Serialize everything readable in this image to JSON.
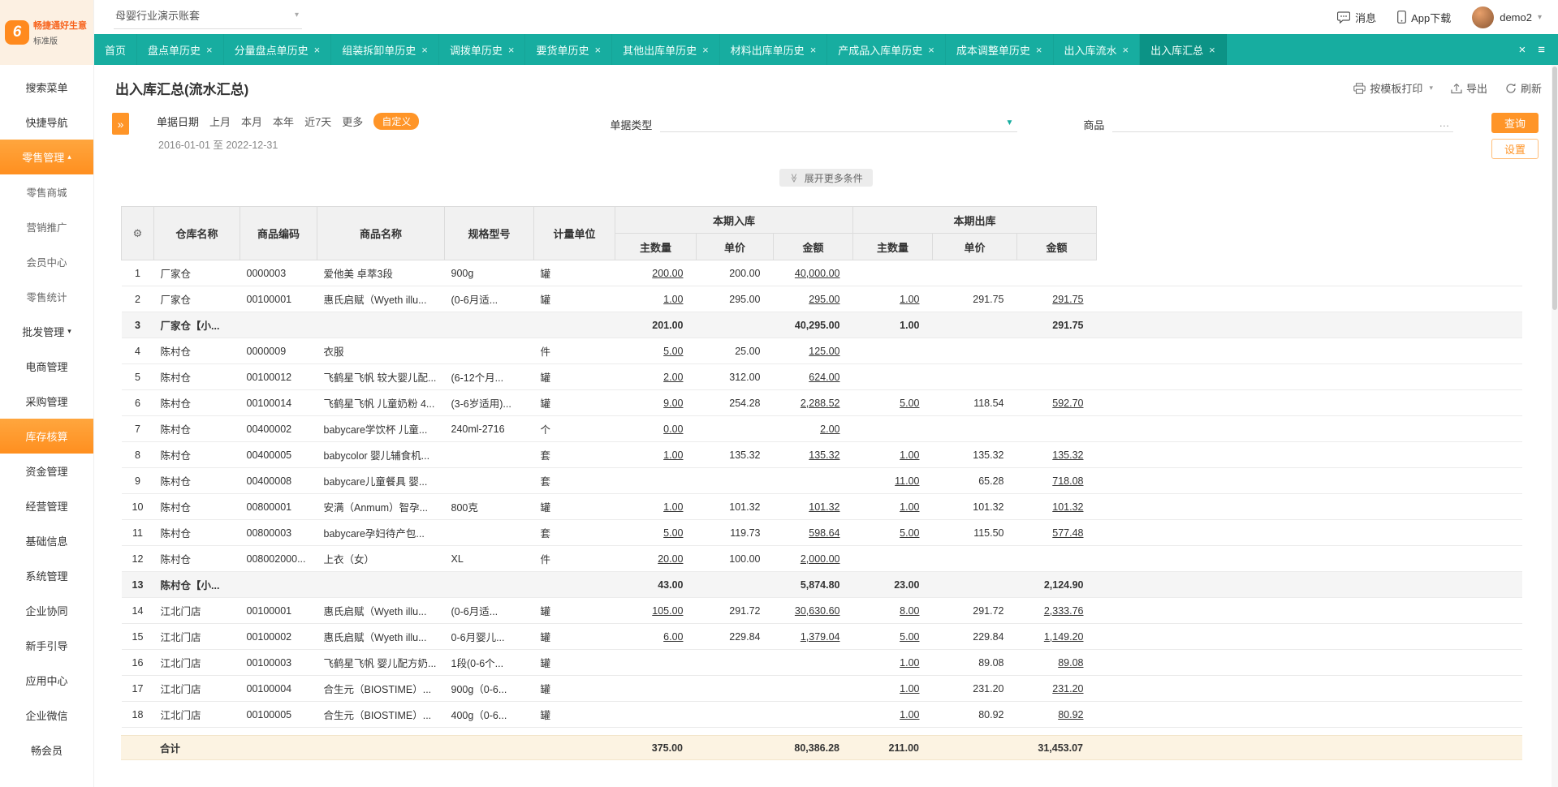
{
  "topbar": {
    "logo_title": "畅捷通好生意",
    "logo_badge": "标准版",
    "account_name": "母婴行业演示账套",
    "messages_label": "消息",
    "app_download_label": "App下载",
    "username": "demo2"
  },
  "tabs": [
    {
      "label": "首页",
      "closable": false,
      "active": false
    },
    {
      "label": "盘点单历史",
      "closable": true,
      "active": false
    },
    {
      "label": "分量盘点单历史",
      "closable": true,
      "active": false
    },
    {
      "label": "组装拆卸单历史",
      "closable": true,
      "active": false
    },
    {
      "label": "调拨单历史",
      "closable": true,
      "active": false
    },
    {
      "label": "要货单历史",
      "closable": true,
      "active": false
    },
    {
      "label": "其他出库单历史",
      "closable": true,
      "active": false
    },
    {
      "label": "材料出库单历史",
      "closable": true,
      "active": false
    },
    {
      "label": "产成品入库单历史",
      "closable": true,
      "active": false
    },
    {
      "label": "成本调整单历史",
      "closable": true,
      "active": false
    },
    {
      "label": "出入库流水",
      "closable": true,
      "active": false
    },
    {
      "label": "出入库汇总",
      "closable": true,
      "active": true
    }
  ],
  "sidebar": {
    "items": [
      {
        "label": "搜索菜单",
        "style": "normal",
        "arrow": ""
      },
      {
        "label": "快捷导航",
        "style": "normal",
        "arrow": ""
      },
      {
        "label": "零售管理",
        "style": "active",
        "arrow": "up"
      },
      {
        "label": "零售商城",
        "style": "sub",
        "arrow": ""
      },
      {
        "label": "营销推广",
        "style": "sub",
        "arrow": ""
      },
      {
        "label": "会员中心",
        "style": "sub",
        "arrow": ""
      },
      {
        "label": "零售统计",
        "style": "sub",
        "arrow": ""
      },
      {
        "label": "批发管理",
        "style": "normal",
        "arrow": "down"
      },
      {
        "label": "电商管理",
        "style": "normal",
        "arrow": ""
      },
      {
        "label": "采购管理",
        "style": "normal",
        "arrow": ""
      },
      {
        "label": "库存核算",
        "style": "active",
        "arrow": ""
      },
      {
        "label": "资金管理",
        "style": "normal",
        "arrow": ""
      },
      {
        "label": "经营管理",
        "style": "normal",
        "arrow": ""
      },
      {
        "label": "基础信息",
        "style": "normal",
        "arrow": ""
      },
      {
        "label": "系统管理",
        "style": "normal",
        "arrow": ""
      },
      {
        "label": "企业协同",
        "style": "normal",
        "arrow": ""
      },
      {
        "label": "新手引导",
        "style": "normal",
        "arrow": ""
      },
      {
        "label": "应用中心",
        "style": "normal",
        "arrow": ""
      },
      {
        "label": "企业微信",
        "style": "normal",
        "arrow": ""
      },
      {
        "label": "畅会员",
        "style": "normal",
        "arrow": ""
      }
    ]
  },
  "page": {
    "title": "出入库汇总(流水汇总)",
    "print_label": "按模板打印",
    "export_label": "导出",
    "refresh_label": "刷新"
  },
  "filters": {
    "date_label": "单据日期",
    "date_options": [
      "上月",
      "本月",
      "本年",
      "近7天",
      "更多"
    ],
    "date_custom_label": "自定义",
    "date_range": "2016-01-01 至 2022-12-31",
    "doc_type_label": "单据类型",
    "product_label": "商品",
    "search_button": "查询",
    "settings_button": "设置",
    "expand_more_label": "展开更多条件"
  },
  "table": {
    "headers": {
      "warehouse": "仓库名称",
      "code": "商品编码",
      "name": "商品名称",
      "spec": "规格型号",
      "unit": "计量单位",
      "group_in": "本期入库",
      "group_out": "本期出库",
      "qty": "主数量",
      "price": "单价",
      "amount": "金额"
    },
    "rows": [
      {
        "n": "1",
        "wh": "厂家仓",
        "code": "0000003",
        "name": "爱他美 卓萃3段",
        "spec": "900g",
        "unit": "罐",
        "iq": "200.00",
        "ip": "200.00",
        "ia": "40,000.00",
        "oq": "",
        "op": "",
        "oa": "",
        "sub": false
      },
      {
        "n": "2",
        "wh": "厂家仓",
        "code": "00100001",
        "name": "惠氏启赋（Wyeth illu...",
        "spec": "(0-6月适...",
        "unit": "罐",
        "iq": "1.00",
        "ip": "295.00",
        "ia": "295.00",
        "oq": "1.00",
        "op": "291.75",
        "oa": "291.75",
        "sub": false
      },
      {
        "n": "3",
        "wh": "厂家仓【小...",
        "code": "",
        "name": "",
        "spec": "",
        "unit": "",
        "iq": "201.00",
        "ip": "",
        "ia": "40,295.00",
        "oq": "1.00",
        "op": "",
        "oa": "291.75",
        "sub": true
      },
      {
        "n": "4",
        "wh": "陈村仓",
        "code": "0000009",
        "name": "衣服",
        "spec": "",
        "unit": "件",
        "iq": "5.00",
        "ip": "25.00",
        "ia": "125.00",
        "oq": "",
        "op": "",
        "oa": "",
        "sub": false
      },
      {
        "n": "5",
        "wh": "陈村仓",
        "code": "00100012",
        "name": "飞鹤星飞帆 较大婴儿配...",
        "spec": "(6-12个月...",
        "unit": "罐",
        "iq": "2.00",
        "ip": "312.00",
        "ia": "624.00",
        "oq": "",
        "op": "",
        "oa": "",
        "sub": false
      },
      {
        "n": "6",
        "wh": "陈村仓",
        "code": "00100014",
        "name": "飞鹤星飞帆 儿童奶粉 4...",
        "spec": "(3-6岁适用)...",
        "unit": "罐",
        "iq": "9.00",
        "ip": "254.28",
        "ia": "2,288.52",
        "oq": "5.00",
        "op": "118.54",
        "oa": "592.70",
        "sub": false
      },
      {
        "n": "7",
        "wh": "陈村仓",
        "code": "00400002",
        "name": "babycare学饮杯 儿童...",
        "spec": "240ml-2716",
        "unit": "个",
        "iq": "0.00",
        "ip": "",
        "ia": "2.00",
        "oq": "",
        "op": "",
        "oa": "",
        "sub": false
      },
      {
        "n": "8",
        "wh": "陈村仓",
        "code": "00400005",
        "name": "babycolor 婴儿辅食机...",
        "spec": "",
        "unit": "套",
        "iq": "1.00",
        "ip": "135.32",
        "ia": "135.32",
        "oq": "1.00",
        "op": "135.32",
        "oa": "135.32",
        "sub": false
      },
      {
        "n": "9",
        "wh": "陈村仓",
        "code": "00400008",
        "name": "babycare儿童餐具 婴...",
        "spec": "",
        "unit": "套",
        "iq": "",
        "ip": "",
        "ia": "",
        "oq": "11.00",
        "op": "65.28",
        "oa": "718.08",
        "sub": false
      },
      {
        "n": "10",
        "wh": "陈村仓",
        "code": "00800001",
        "name": "安满（Anmum）智孕...",
        "spec": "800克",
        "unit": "罐",
        "iq": "1.00",
        "ip": "101.32",
        "ia": "101.32",
        "oq": "1.00",
        "op": "101.32",
        "oa": "101.32",
        "sub": false
      },
      {
        "n": "11",
        "wh": "陈村仓",
        "code": "00800003",
        "name": "babycare孕妇待产包...",
        "spec": "",
        "unit": "套",
        "iq": "5.00",
        "ip": "119.73",
        "ia": "598.64",
        "oq": "5.00",
        "op": "115.50",
        "oa": "577.48",
        "sub": false
      },
      {
        "n": "12",
        "wh": "陈村仓",
        "code": "008002000...",
        "name": "上衣（女）",
        "spec": "XL",
        "unit": "件",
        "iq": "20.00",
        "ip": "100.00",
        "ia": "2,000.00",
        "oq": "",
        "op": "",
        "oa": "",
        "sub": false
      },
      {
        "n": "13",
        "wh": "陈村仓【小...",
        "code": "",
        "name": "",
        "spec": "",
        "unit": "",
        "iq": "43.00",
        "ip": "",
        "ia": "5,874.80",
        "oq": "23.00",
        "op": "",
        "oa": "2,124.90",
        "sub": true
      },
      {
        "n": "14",
        "wh": "江北门店",
        "code": "00100001",
        "name": "惠氏启赋（Wyeth illu...",
        "spec": "(0-6月适...",
        "unit": "罐",
        "iq": "105.00",
        "ip": "291.72",
        "ia": "30,630.60",
        "oq": "8.00",
        "op": "291.72",
        "oa": "2,333.76",
        "sub": false
      },
      {
        "n": "15",
        "wh": "江北门店",
        "code": "00100002",
        "name": "惠氏启赋（Wyeth illu...",
        "spec": "0-6月婴儿...",
        "unit": "罐",
        "iq": "6.00",
        "ip": "229.84",
        "ia": "1,379.04",
        "oq": "5.00",
        "op": "229.84",
        "oa": "1,149.20",
        "sub": false
      },
      {
        "n": "16",
        "wh": "江北门店",
        "code": "00100003",
        "name": "飞鹤星飞帆 婴儿配方奶...",
        "spec": "1段(0-6个...",
        "unit": "罐",
        "iq": "",
        "ip": "",
        "ia": "",
        "oq": "1.00",
        "op": "89.08",
        "oa": "89.08",
        "sub": false
      },
      {
        "n": "17",
        "wh": "江北门店",
        "code": "00100004",
        "name": "合生元（BIOSTIME）...",
        "spec": "900g（0-6...",
        "unit": "罐",
        "iq": "",
        "ip": "",
        "ia": "",
        "oq": "1.00",
        "op": "231.20",
        "oa": "231.20",
        "sub": false
      },
      {
        "n": "18",
        "wh": "江北门店",
        "code": "00100005",
        "name": "合生元（BIOSTIME）...",
        "spec": "400g（0-6...",
        "unit": "罐",
        "iq": "",
        "ip": "",
        "ia": "",
        "oq": "1.00",
        "op": "80.92",
        "oa": "80.92",
        "sub": false
      }
    ],
    "total": {
      "label": "合计",
      "in_qty": "375.00",
      "in_amount": "80,386.28",
      "out_qty": "211.00",
      "out_amount": "31,453.07"
    }
  },
  "icons": {
    "close": "×",
    "menu": "≡",
    "expand": "»",
    "gear": "⚙",
    "caret_down": "▾",
    "caret_up": "▴",
    "select_caret": "▼",
    "ellipsis": "…",
    "double_down": "≫",
    "logo_glyph": "6"
  }
}
